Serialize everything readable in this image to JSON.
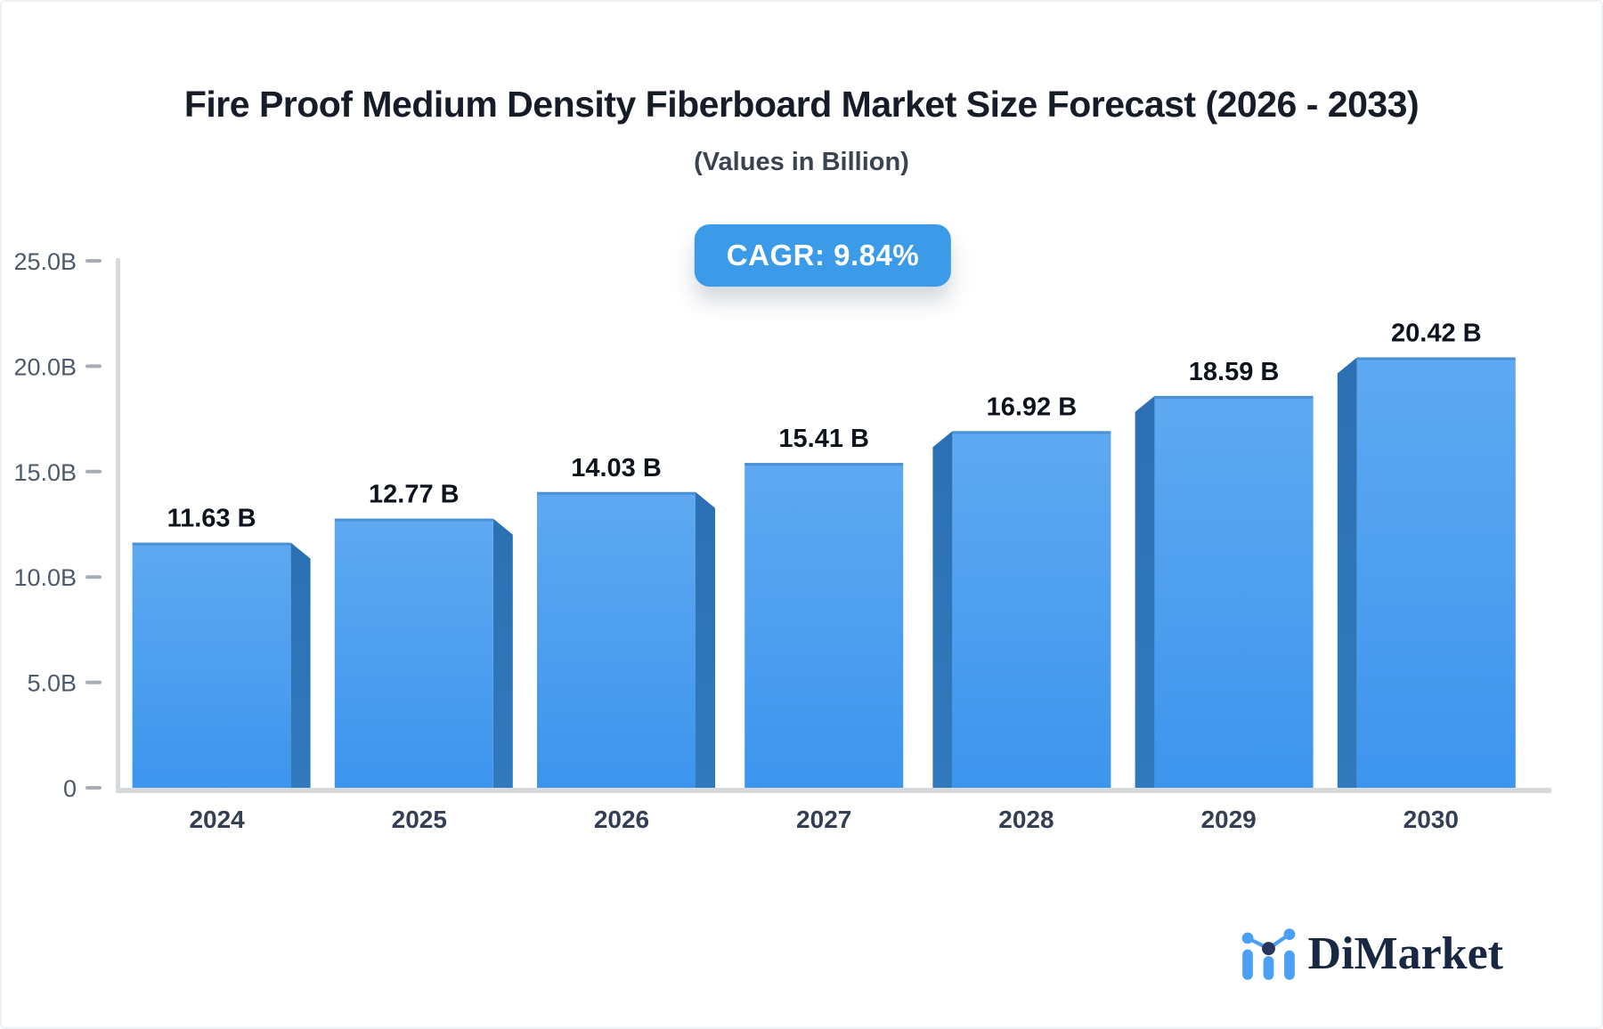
{
  "header": {
    "title": "Fire Proof Medium Density Fiberboard Market Size Forecast (2026 - 2033)",
    "subtitle": "(Values in Billion)"
  },
  "badge": {
    "label": "CAGR: 9.84%"
  },
  "chart_data": {
    "type": "bar",
    "categories": [
      "2024",
      "2025",
      "2026",
      "2027",
      "2028",
      "2029",
      "2030"
    ],
    "values": [
      11.63,
      12.77,
      14.03,
      15.41,
      16.92,
      18.59,
      20.42
    ],
    "value_labels": [
      "11.63 B",
      "12.77 B",
      "14.03 B",
      "15.41 B",
      "16.92 B",
      "18.59 B",
      "20.42 B"
    ],
    "y_tick_labels": [
      "0",
      "5.0B",
      "10.0B",
      "15.0B",
      "20.0B",
      "25.0B"
    ],
    "y_tick_values": [
      0,
      5,
      10,
      15,
      20,
      25
    ],
    "ylim": [
      0,
      25
    ],
    "xlabel": "",
    "ylabel": "",
    "grid": false,
    "legend": false,
    "colors": {
      "bar_face_top": "#5ea9f1",
      "bar_face_bottom": "#3d95ee",
      "bar_side_top": "#2b70b3",
      "bar_side_bottom": "#3179bd",
      "bar_top_edge": "rgba(36,100,160,0.35)",
      "axis_line": "#d7dadd",
      "tick_dash": "#a7adb5",
      "y_label": "#4e5a6a",
      "x_label": "#333f54",
      "value_label": "#0e141d"
    }
  },
  "brand": {
    "name": "DiMarket",
    "icon": "bar-chart-logo-icon",
    "accent_blue": "#4aa0f5",
    "navy": "#182841"
  }
}
